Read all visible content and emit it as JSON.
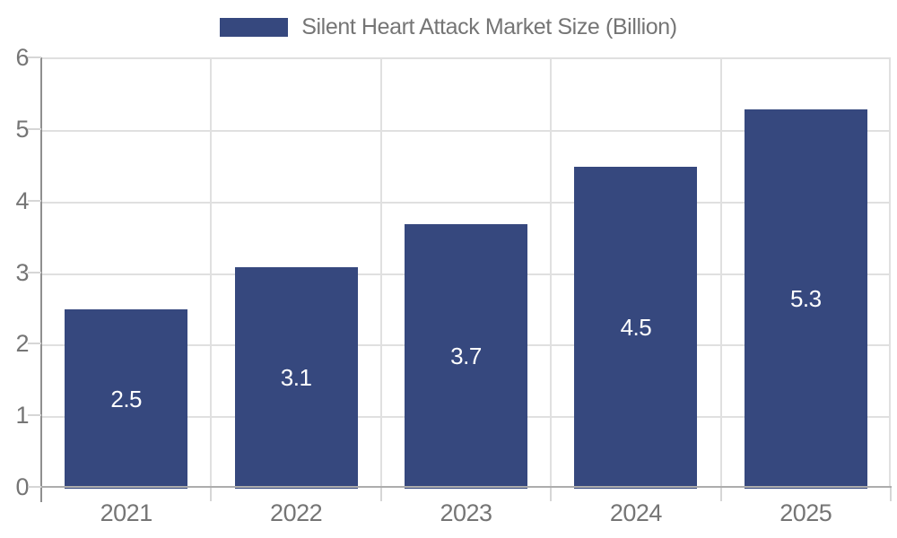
{
  "legend": {
    "label": "Silent Heart Attack Market Size (Billion)"
  },
  "chart_data": {
    "type": "bar",
    "categories": [
      "2021",
      "2022",
      "2023",
      "2024",
      "2025"
    ],
    "values": [
      2.5,
      3.1,
      3.7,
      4.5,
      5.3
    ],
    "value_labels": [
      "2.5",
      "3.1",
      "3.7",
      "4.5",
      "5.3"
    ],
    "title": "Silent Heart Attack Market Size (Billion)",
    "xlabel": "",
    "ylabel": "",
    "ylim": [
      0,
      6
    ],
    "yticks": [
      0,
      1,
      2,
      3,
      4,
      5,
      6
    ],
    "grid": true,
    "legend_position": "top-center",
    "bar_color": "#36487E",
    "value_label_color": "#FFFFFF",
    "colors": {
      "grid": "#E0E0E0",
      "axis_y": "#8F8F8F",
      "axis_x": "#ADADAD",
      "tick": "#D6D6D6",
      "tick_label": "#757575",
      "legend_text": "#757575",
      "background": "#FFFFFF"
    }
  }
}
